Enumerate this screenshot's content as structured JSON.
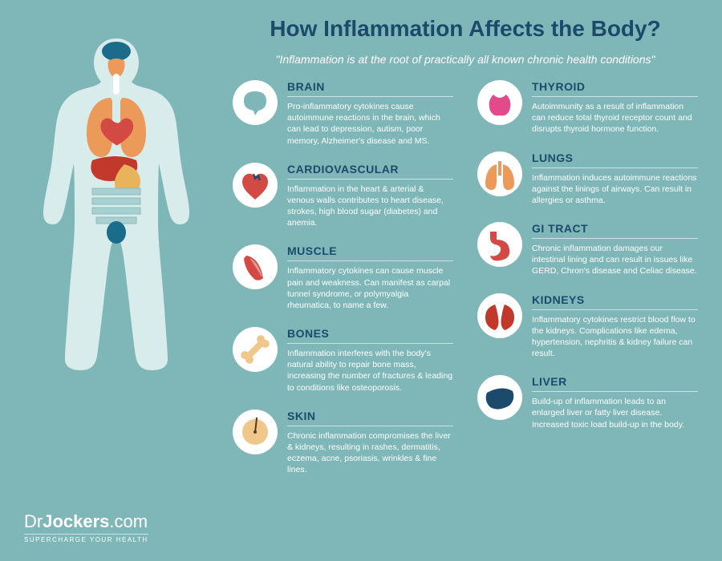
{
  "style": {
    "background_color": "#7fb7b8",
    "title_color": "#1b4a6b",
    "subtitle_color": "#ffffff",
    "item_title_color": "#1b4a6b",
    "item_desc_color": "#ffffff",
    "icon_circle_bg": "#ffffff",
    "body_outline": "#d9ecec",
    "body_fill": "#a9d0d0"
  },
  "title": "How Inflammation Affects the Body?",
  "subtitle": "\"Inflammation is at the root of practically all known chronic health conditions\"",
  "brand": {
    "name_pre": "Dr",
    "name_bold": "Jockers",
    "suffix": ".com",
    "tagline": "SUPERCHARGE YOUR HEALTH"
  },
  "left_column": [
    {
      "key": "brain",
      "title": "BRAIN",
      "icon_color": "#7fb7b8",
      "desc": "Pro-inflammatory cytokines cause autoimmune reactions in the brain, which can lead to depression, autism, poor memory, Alzheimer's disease and MS."
    },
    {
      "key": "cardiovascular",
      "title": "CARDIOVASCULAR",
      "icon_color": "#d24a43",
      "desc": "Inflammation in the heart & arterial & venous walls contributes to heart disease, strokes, high blood sugar (diabetes) and anemia."
    },
    {
      "key": "muscle",
      "title": "MUSCLE",
      "icon_color": "#d24a43",
      "desc": "Inflammatory cytokines can cause muscle pain and weakness. Can manifest as carpal tunnel syndrome, or polymyalgia rheumatica, to name a few."
    },
    {
      "key": "bones",
      "title": "BONES",
      "icon_color": "#f0c78a",
      "desc": "Inflammation interferes with the body's natural ability to repair bone mass, increasing the number of fractures & leading to conditions like osteoporosis."
    },
    {
      "key": "skin",
      "title": "SKIN",
      "icon_color": "#f0c78a",
      "desc": "Chronic inflammation compromises the liver & kidneys, resulting in rashes, dermatitis, eczema, acne, psoriasis, wrinkles & fine lines."
    }
  ],
  "right_column": [
    {
      "key": "thyroid",
      "title": "THYROID",
      "icon_color": "#e24a8a",
      "desc": "Autoimmunity as a result of inflammation can reduce total thyroid receptor count and disrupts thyroid hormone function."
    },
    {
      "key": "lungs",
      "title": "LUNGS",
      "icon_color": "#ec9a5a",
      "desc": "Inflammation induces autoimmune reactions against the linings of airways. Can result in allergies or asthma."
    },
    {
      "key": "gi",
      "title": "GI TRACT",
      "icon_color": "#d24a43",
      "desc": "Chronic inflammation damages our intestinal lining and can result in issues like GERD, Chron's disease and Celiac disease."
    },
    {
      "key": "kidneys",
      "title": "KIDNEYS",
      "icon_color": "#c0392b",
      "desc": "Inflammatory cytokines restrict blood flow to the kidneys. Complications like edema, hypertension, nephritis & kidney failure can result."
    },
    {
      "key": "liver",
      "title": "LIVER",
      "icon_color": "#1b4a6b",
      "desc": "Build-up of inflammation leads to an enlarged liver or fatty liver disease. Increased toxic load build-up in the body."
    }
  ],
  "body_organs": {
    "brain_color": "#1b6b8a",
    "sinus_color": "#ec9a5a",
    "throat_color": "#ffffff",
    "lungs_color": "#ec9a5a",
    "heart_color": "#d24a43",
    "liver_color": "#c0392b",
    "stomach_color": "#e8b35a",
    "intestine_color": "#a9d0d0",
    "bladder_color": "#1b6b8a"
  }
}
